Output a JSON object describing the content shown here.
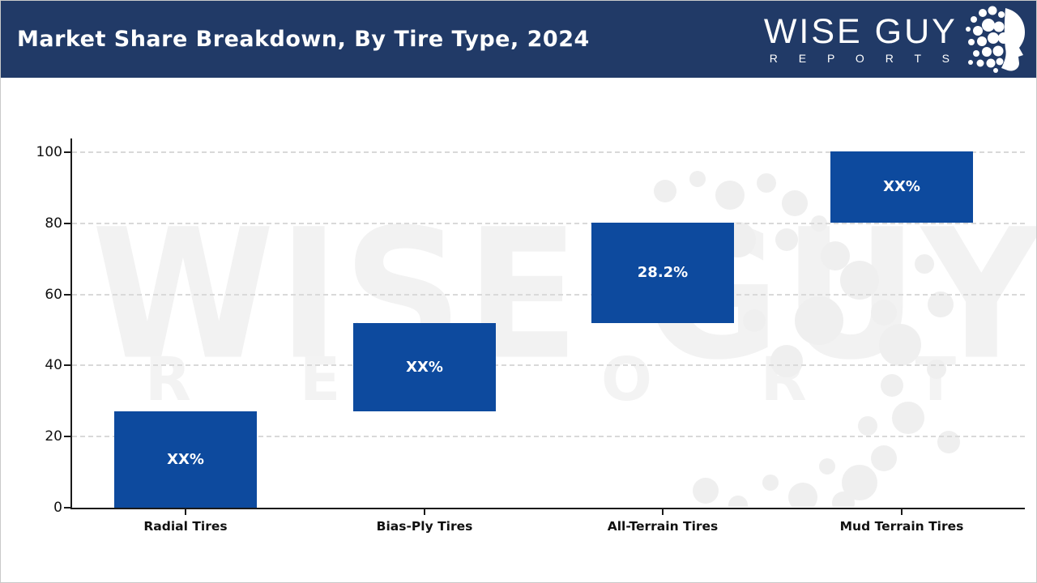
{
  "header": {
    "title": "Market Share Breakdown, By Tire Type, 2024",
    "logo": {
      "line1": "WISE GUY",
      "line2": "R E P O R T S"
    }
  },
  "watermark": {
    "line1": "WISE GUY",
    "line2": "R E P O R T S"
  },
  "colors": {
    "header_bg": "#213a67",
    "bar": "#0d4a9e",
    "title_text": "#ffffff",
    "bar_label_text": "#ffffff",
    "axis": "#1a1a1a",
    "tick_label": "#111111",
    "gridline": "#d9d9d9",
    "watermark": "#f2f2f2",
    "frame_border": "#c9c9c9"
  },
  "chart_data": {
    "type": "bar",
    "subtype": "floating-waterfall",
    "title": "Market Share Breakdown, By Tire Type, 2024",
    "categories": [
      "Radial Tires",
      "Bias-Ply Tires",
      "All-Terrain Tires",
      "Mud Terrain Tires"
    ],
    "segments": [
      {
        "category": "Radial Tires",
        "start": 0,
        "end": 27.1,
        "label": "XX%"
      },
      {
        "category": "Bias-Ply Tires",
        "start": 27.1,
        "end": 51.9,
        "label": "XX%"
      },
      {
        "category": "All-Terrain Tires",
        "start": 51.9,
        "end": 80.1,
        "label": "28.2%"
      },
      {
        "category": "Mud Terrain Tires",
        "start": 80.1,
        "end": 100.3,
        "label": "XX%"
      }
    ],
    "yticks": [
      0,
      20,
      40,
      60,
      80,
      100
    ],
    "ylim": [
      0,
      104
    ],
    "xlabel": "",
    "ylabel": "",
    "legend": "none",
    "grid": "horizontal-dashed",
    "bar_color": "#0d4a9e"
  }
}
